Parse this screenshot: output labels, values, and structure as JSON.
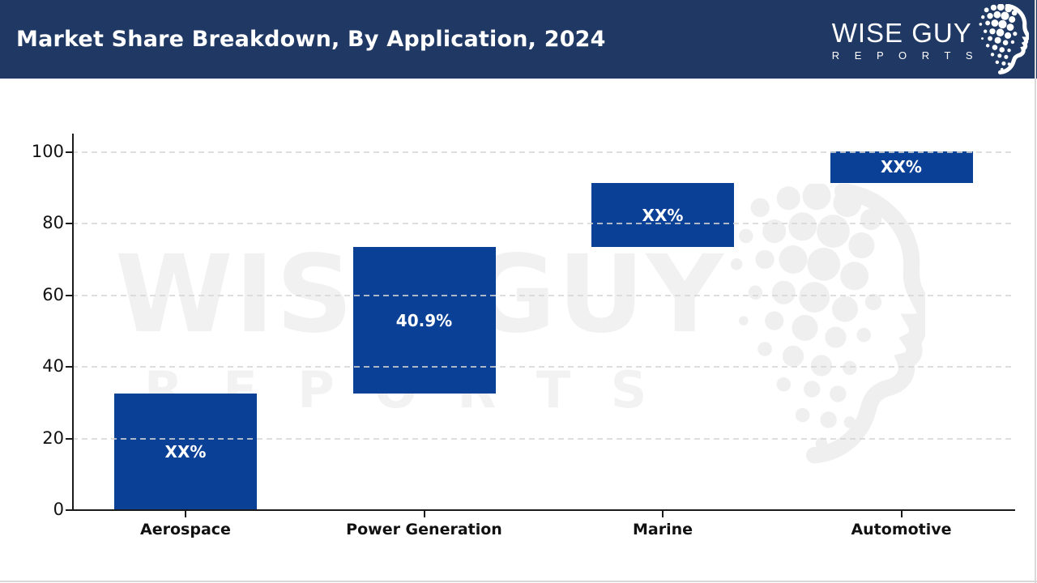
{
  "header": {
    "title": "Market Share Breakdown, By Application, 2024",
    "logo": {
      "line1": "WISE GUY",
      "line2": "R E P O R T S",
      "head_icon": "dotted-head-profile"
    }
  },
  "watermark": {
    "line1": "WISE GUY",
    "line2": "R E P O R T S",
    "head_icon": "dotted-head-profile"
  },
  "colors": {
    "header_bg": "#1f3864",
    "bar": "#0a4196",
    "bar_label": "#ffffff",
    "gridline": "#d6d6d6",
    "axis": "#1a1a1a",
    "watermark": "#f1f1f1",
    "edge_hairline": "#d9d9d9"
  },
  "chart_data": {
    "type": "bar",
    "subtype": "floating-waterfall",
    "title": "Market Share Breakdown, By Application, 2024",
    "categories": [
      "Aerospace",
      "Power Generation",
      "Marine",
      "Automotive"
    ],
    "segments": [
      {
        "category": "Aerospace",
        "start": 0,
        "end": 32.3,
        "value": 32.3,
        "label": "XX%"
      },
      {
        "category": "Power Generation",
        "start": 32.3,
        "end": 73.2,
        "value": 40.9,
        "label": "40.9%"
      },
      {
        "category": "Marine",
        "start": 73.2,
        "end": 91.2,
        "value": 18.0,
        "label": "XX%"
      },
      {
        "category": "Automotive",
        "start": 91.2,
        "end": 100,
        "value": 8.8,
        "label": "XX%"
      }
    ],
    "xlabel": "",
    "ylabel": "",
    "yticks": [
      0,
      20,
      40,
      60,
      80,
      100
    ],
    "ylim": [
      0,
      105
    ],
    "grid": "horizontal-dashed-over-bars",
    "legend": "none"
  }
}
